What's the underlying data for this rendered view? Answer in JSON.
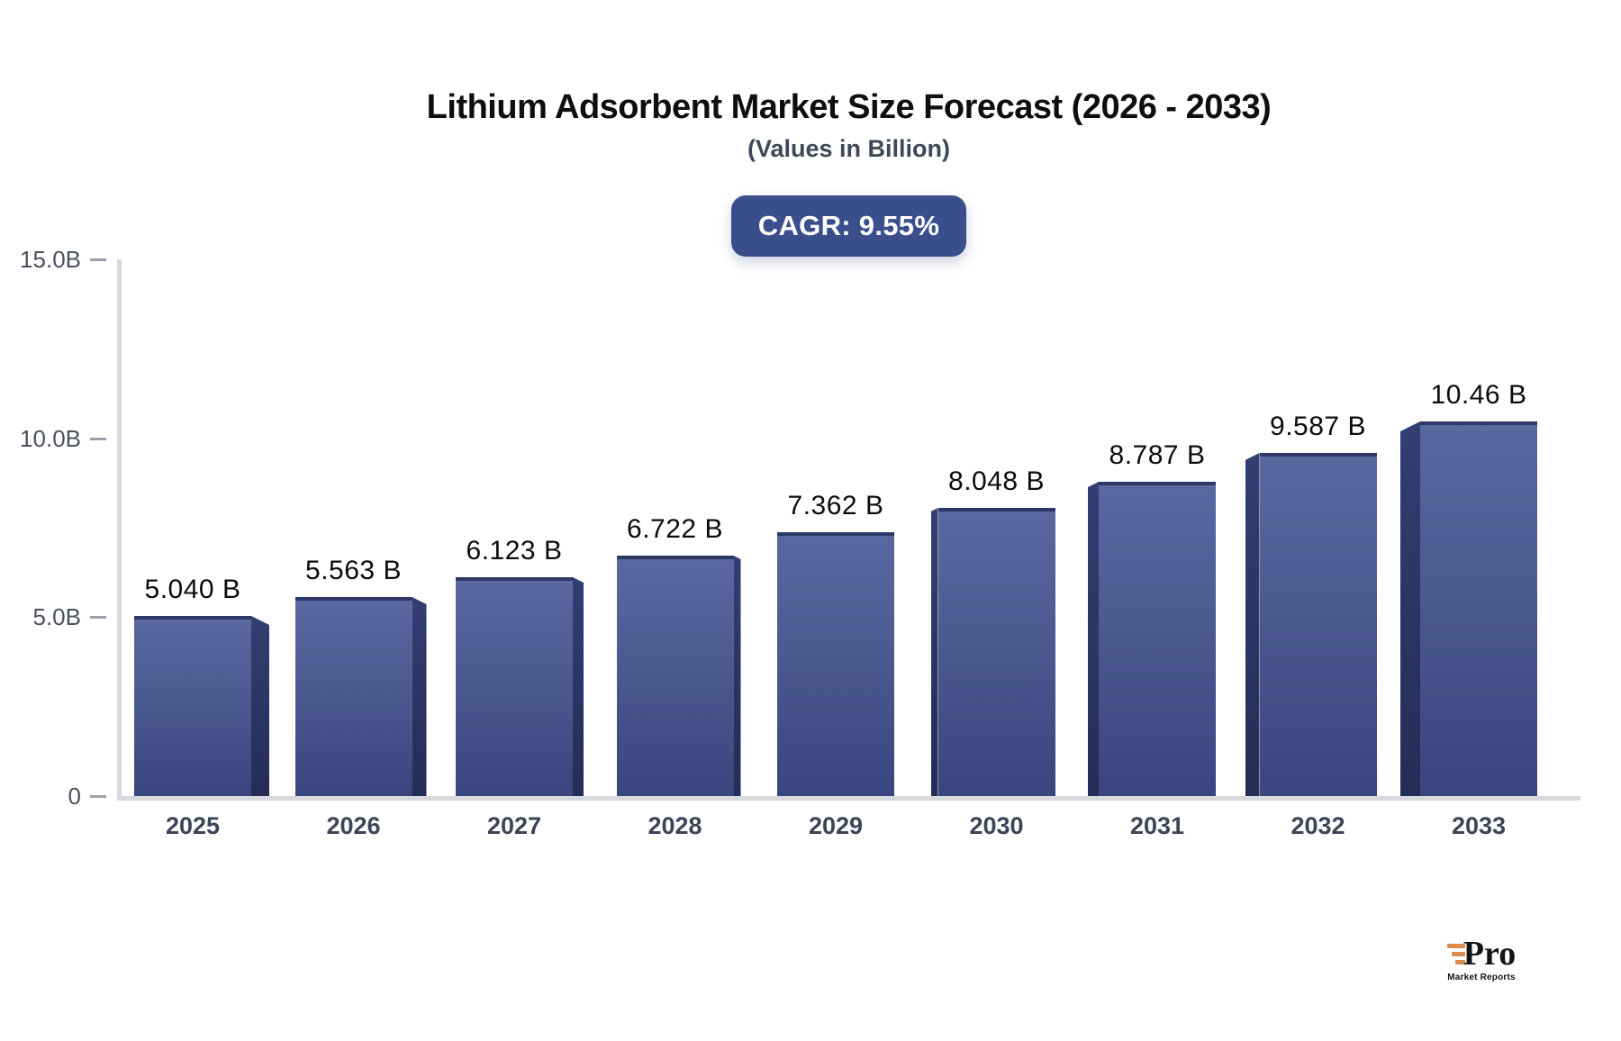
{
  "header": {
    "title": "Lithium Adsorbent Market Size Forecast (2026 - 2033)",
    "subtitle": "(Values in Billion)",
    "cagr_badge": "CAGR: 9.55%"
  },
  "chart_data": {
    "type": "bar",
    "title": "Lithium Adsorbent Market Size Forecast (2026 - 2033)",
    "subtitle": "(Values in Billion)",
    "cagr_percent": 9.55,
    "unit": "Billion",
    "categories": [
      "2025",
      "2026",
      "2027",
      "2028",
      "2029",
      "2030",
      "2031",
      "2032",
      "2033"
    ],
    "values": [
      5.04,
      5.563,
      6.123,
      6.722,
      7.362,
      8.048,
      8.787,
      9.587,
      10.46
    ],
    "value_labels": [
      "5.040 B",
      "5.563 B",
      "6.123 B",
      "6.722 B",
      "7.362 B",
      "8.048 B",
      "8.787 B",
      "9.587 B",
      "10.46 B"
    ],
    "ylim": [
      0,
      15
    ],
    "yticks": [
      {
        "value": 0,
        "label": "0"
      },
      {
        "value": 5,
        "label": "5.0B"
      },
      {
        "value": 10,
        "label": "10.0B"
      },
      {
        "value": 15,
        "label": "15.0B"
      }
    ],
    "grid": false,
    "legend": false,
    "style": "3d-column",
    "colors": {
      "bar_face_top": "#5a68a1",
      "bar_face_bottom": "#39457e",
      "bar_side": "#2c3766",
      "bar_top_edge": "#2d3867",
      "axis_line": "#d7d9de",
      "tick_label": "#4a5160",
      "category_label": "#3d4456",
      "value_label": "#0c0c10",
      "badge_bg": "#3a4e8c",
      "badge_text": "#ffffff"
    }
  },
  "logo": {
    "brand": "Pro",
    "tagline": "Market Reports",
    "accent_color": "#dd8a4d"
  }
}
